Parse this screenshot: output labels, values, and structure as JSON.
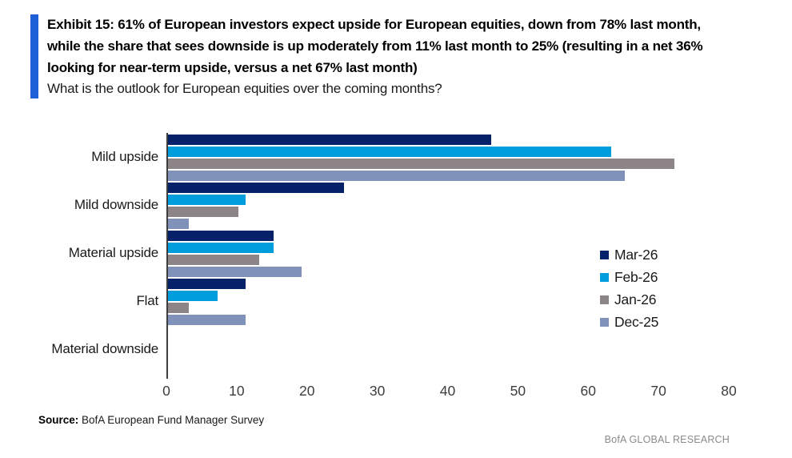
{
  "header": {
    "title": "Exhibit 15: 61% of European investors expect upside for European equities, down from 78% last month, while the share that sees downside is up moderately from 11% last month to 25% (resulting in a net 36% looking for near-term upside, versus a net 67% last month)",
    "subtitle": "What is the outlook for European equities over the coming months?"
  },
  "chart_data": {
    "type": "bar",
    "orientation": "horizontal",
    "categories": [
      "Mild upside",
      "Mild downside",
      "Material upside",
      "Flat",
      "Material downside"
    ],
    "series": [
      {
        "name": "Mar-26",
        "color": "#052169",
        "values": [
          46,
          25,
          15,
          11,
          0
        ]
      },
      {
        "name": "Feb-26",
        "color": "#009ddc",
        "values": [
          63,
          11,
          15,
          7,
          0
        ]
      },
      {
        "name": "Jan-26",
        "color": "#8c8486",
        "values": [
          72,
          10,
          13,
          3,
          0
        ]
      },
      {
        "name": "Dec-25",
        "color": "#8092ba",
        "values": [
          65,
          3,
          19,
          11,
          0
        ]
      }
    ],
    "xlim": [
      0,
      80
    ],
    "x_ticks": [
      0,
      10,
      20,
      30,
      40,
      50,
      60,
      70,
      80
    ],
    "grid": false,
    "legend_position": "right-middle"
  },
  "source": {
    "label": "Source:",
    "text": " BofA European Fund Manager Survey"
  },
  "footer": {
    "brand": "BofA GLOBAL RESEARCH"
  },
  "colors": {
    "accent_bar": "#1d60d8",
    "axis_line": "#3d3d3d",
    "tick_text": "#3d3d3d",
    "footer_text": "#8b8b8b"
  }
}
